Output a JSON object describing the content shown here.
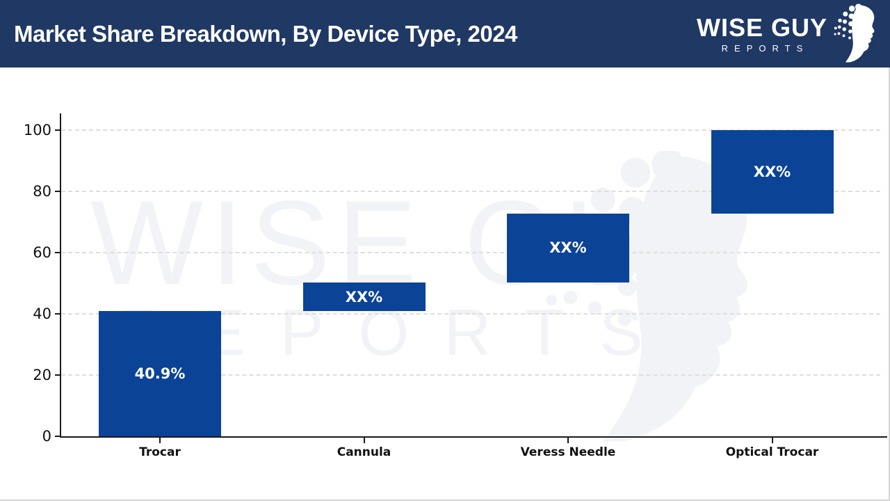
{
  "header": {
    "title": "Market Share Breakdown, By Device Type, 2024",
    "logo": {
      "brand_top": "WISE GUY",
      "brand_bottom": "REPORTS"
    }
  },
  "watermark": {
    "line1": "WISE GUY",
    "line2": "REPORTS"
  },
  "chart_data": {
    "type": "bar",
    "subtype": "waterfall",
    "title": "Market Share Breakdown, By Device Type, 2024",
    "xlabel": "",
    "ylabel": "",
    "categories": [
      "Trocar",
      "Cannula",
      "Veress Needle",
      "Optical Trocar"
    ],
    "segments": [
      {
        "category": "Trocar",
        "start": 0,
        "end": 40.9,
        "label": "40.9%"
      },
      {
        "category": "Cannula",
        "start": 40.9,
        "end": 50.2,
        "label": "XX%"
      },
      {
        "category": "Veress Needle",
        "start": 50.2,
        "end": 72.8,
        "label": "XX%"
      },
      {
        "category": "Optical Trocar",
        "start": 72.8,
        "end": 100,
        "label": "XX%"
      }
    ],
    "yticks": [
      0,
      20,
      40,
      60,
      80,
      100
    ],
    "ylim": [
      0,
      105.5
    ],
    "grid": "horizontal-dashed",
    "legend": "none"
  },
  "colors": {
    "header_bg": "#1f3864",
    "header_text": "#ffffff",
    "bar": "#0b4397",
    "bar_label": "#ffffff",
    "axis": "#1a1a1a",
    "tick_text": "#111111",
    "gridline": "#dedede",
    "watermark": "#f2f3f6",
    "page_border": "#d5d5d5",
    "background": "#ffffff"
  }
}
